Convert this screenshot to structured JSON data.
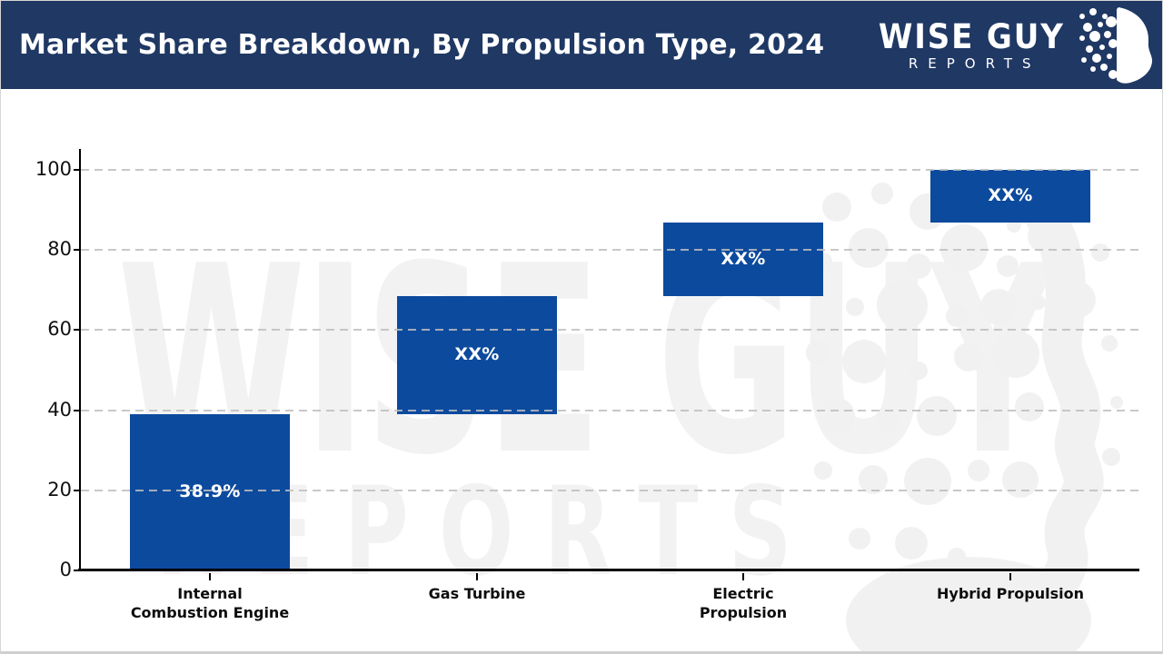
{
  "header": {
    "title": "Market Share Breakdown, By Propulsion Type, 2024",
    "logo": {
      "wordmark": "WISE GUY",
      "subtext": "REPORTS"
    }
  },
  "watermark": {
    "wordmark": "WISE GUY",
    "subtext": "REPORTS"
  },
  "colors": {
    "header_bg": "#1f3864",
    "bar_fill": "#0c4a9e",
    "bar_label_text": "#ffffff",
    "grid": "#bebebe",
    "axis": "#000000",
    "tick_text": "#111111",
    "watermark": "#f2f2f2"
  },
  "chart_data": {
    "type": "bar",
    "subtype": "waterfall",
    "title": "Market Share Breakdown, By Propulsion Type, 2024",
    "xlabel": "",
    "ylabel": "",
    "ylim": [
      0,
      100
    ],
    "yticks": [
      0,
      20,
      40,
      60,
      80,
      100
    ],
    "grid": "horizontal-dashed",
    "grid_above_bars": true,
    "categories": [
      "Internal Combustion Engine",
      "Gas Turbine",
      "Electric Propulsion",
      "Hybrid Propulsion"
    ],
    "bars": [
      {
        "category_lines": [
          "Internal",
          "Combustion Engine"
        ],
        "base": 0,
        "top": 38.9,
        "label": "38.9%"
      },
      {
        "category_lines": [
          "Gas Turbine"
        ],
        "base": 38.9,
        "top": 68.5,
        "label": "XX%"
      },
      {
        "category_lines": [
          "Electric",
          "Propulsion"
        ],
        "base": 68.5,
        "top": 86.8,
        "label": "XX%"
      },
      {
        "category_lines": [
          "Hybrid Propulsion"
        ],
        "base": 86.8,
        "top": 100,
        "label": "XX%"
      }
    ]
  }
}
